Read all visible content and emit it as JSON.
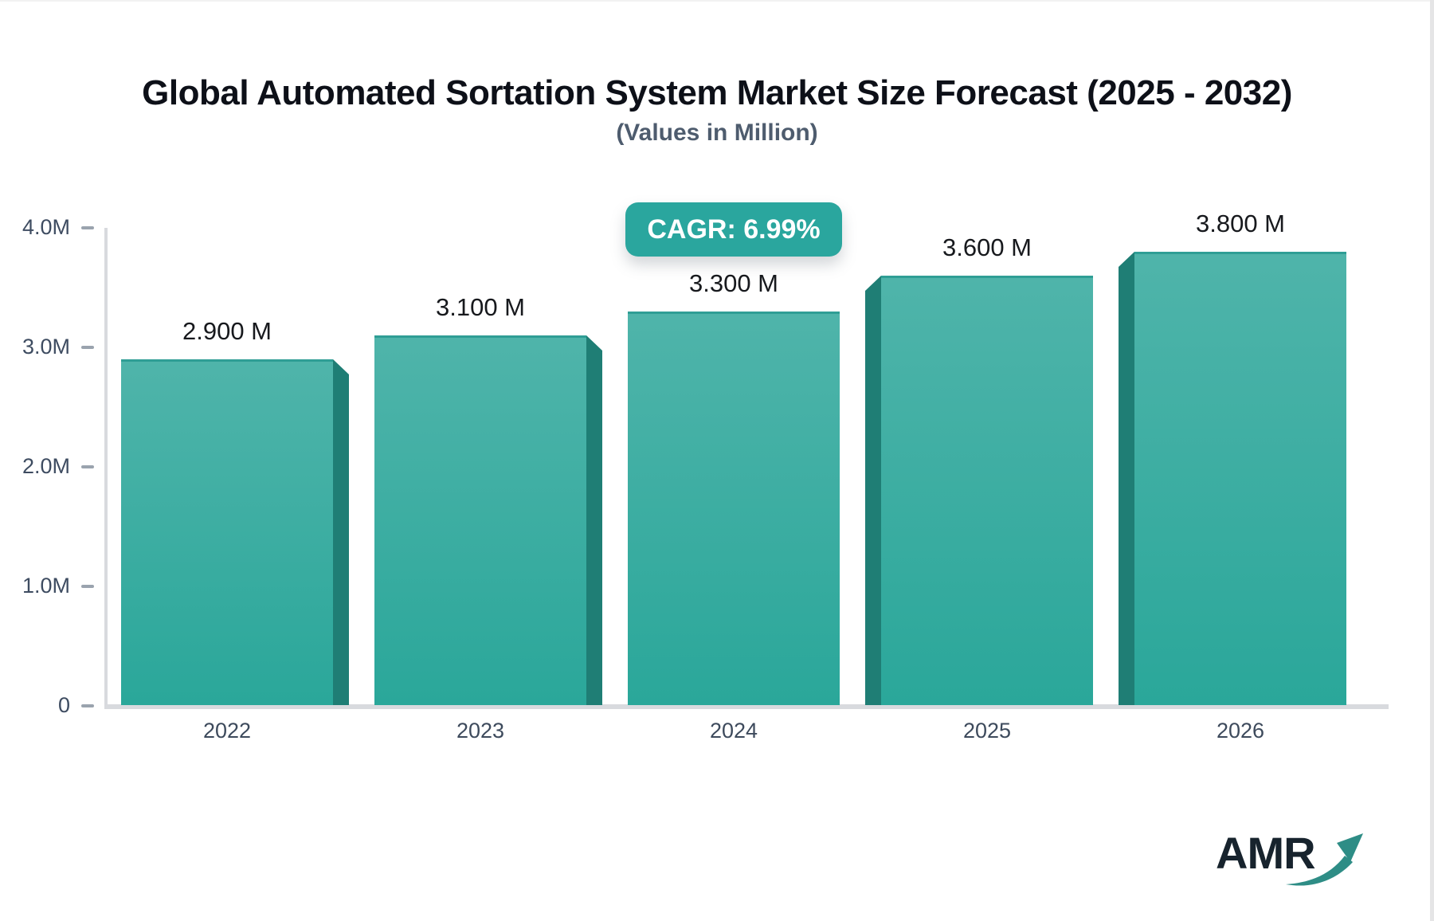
{
  "header": {
    "title": "Global Automated Sortation System Market Size Forecast (2025 - 2032)",
    "subtitle": "(Values in Million)"
  },
  "badge": {
    "label": "CAGR: 6.99%",
    "bg_color": "#2aa69e"
  },
  "chart_data": {
    "type": "bar",
    "title": "Global Automated Sortation System Market Size Forecast (2025 - 2032)",
    "subtitle": "(Values in Million)",
    "categories": [
      "2022",
      "2023",
      "2024",
      "2025",
      "2026"
    ],
    "values": [
      2.9,
      3.1,
      3.3,
      3.6,
      3.8
    ],
    "value_labels": [
      "2.900 M",
      "3.100 M",
      "3.300 M",
      "3.600 M",
      "3.800 M"
    ],
    "unit": "Million",
    "ylim": [
      0,
      4.0
    ],
    "yticks": [
      0,
      1.0,
      2.0,
      3.0,
      4.0
    ],
    "ytick_labels": [
      "0",
      "1.0M",
      "2.0M",
      "3.0M",
      "4.0M"
    ],
    "xlabel": "",
    "ylabel": "",
    "grid": false,
    "legend": "none",
    "annotation": "CAGR: 6.99%",
    "bar_color_top": "#4fb4aa",
    "bar_color_bottom": "#2aa79a",
    "bar_side_color": "#1f7e75",
    "axis_color": "#d8dade",
    "tick_color": "#9aa3ae"
  },
  "logo": {
    "text": "AMR",
    "icon": "growth-arrow-icon",
    "text_color": "#17232d",
    "arrow_color": "#2e8d86"
  }
}
